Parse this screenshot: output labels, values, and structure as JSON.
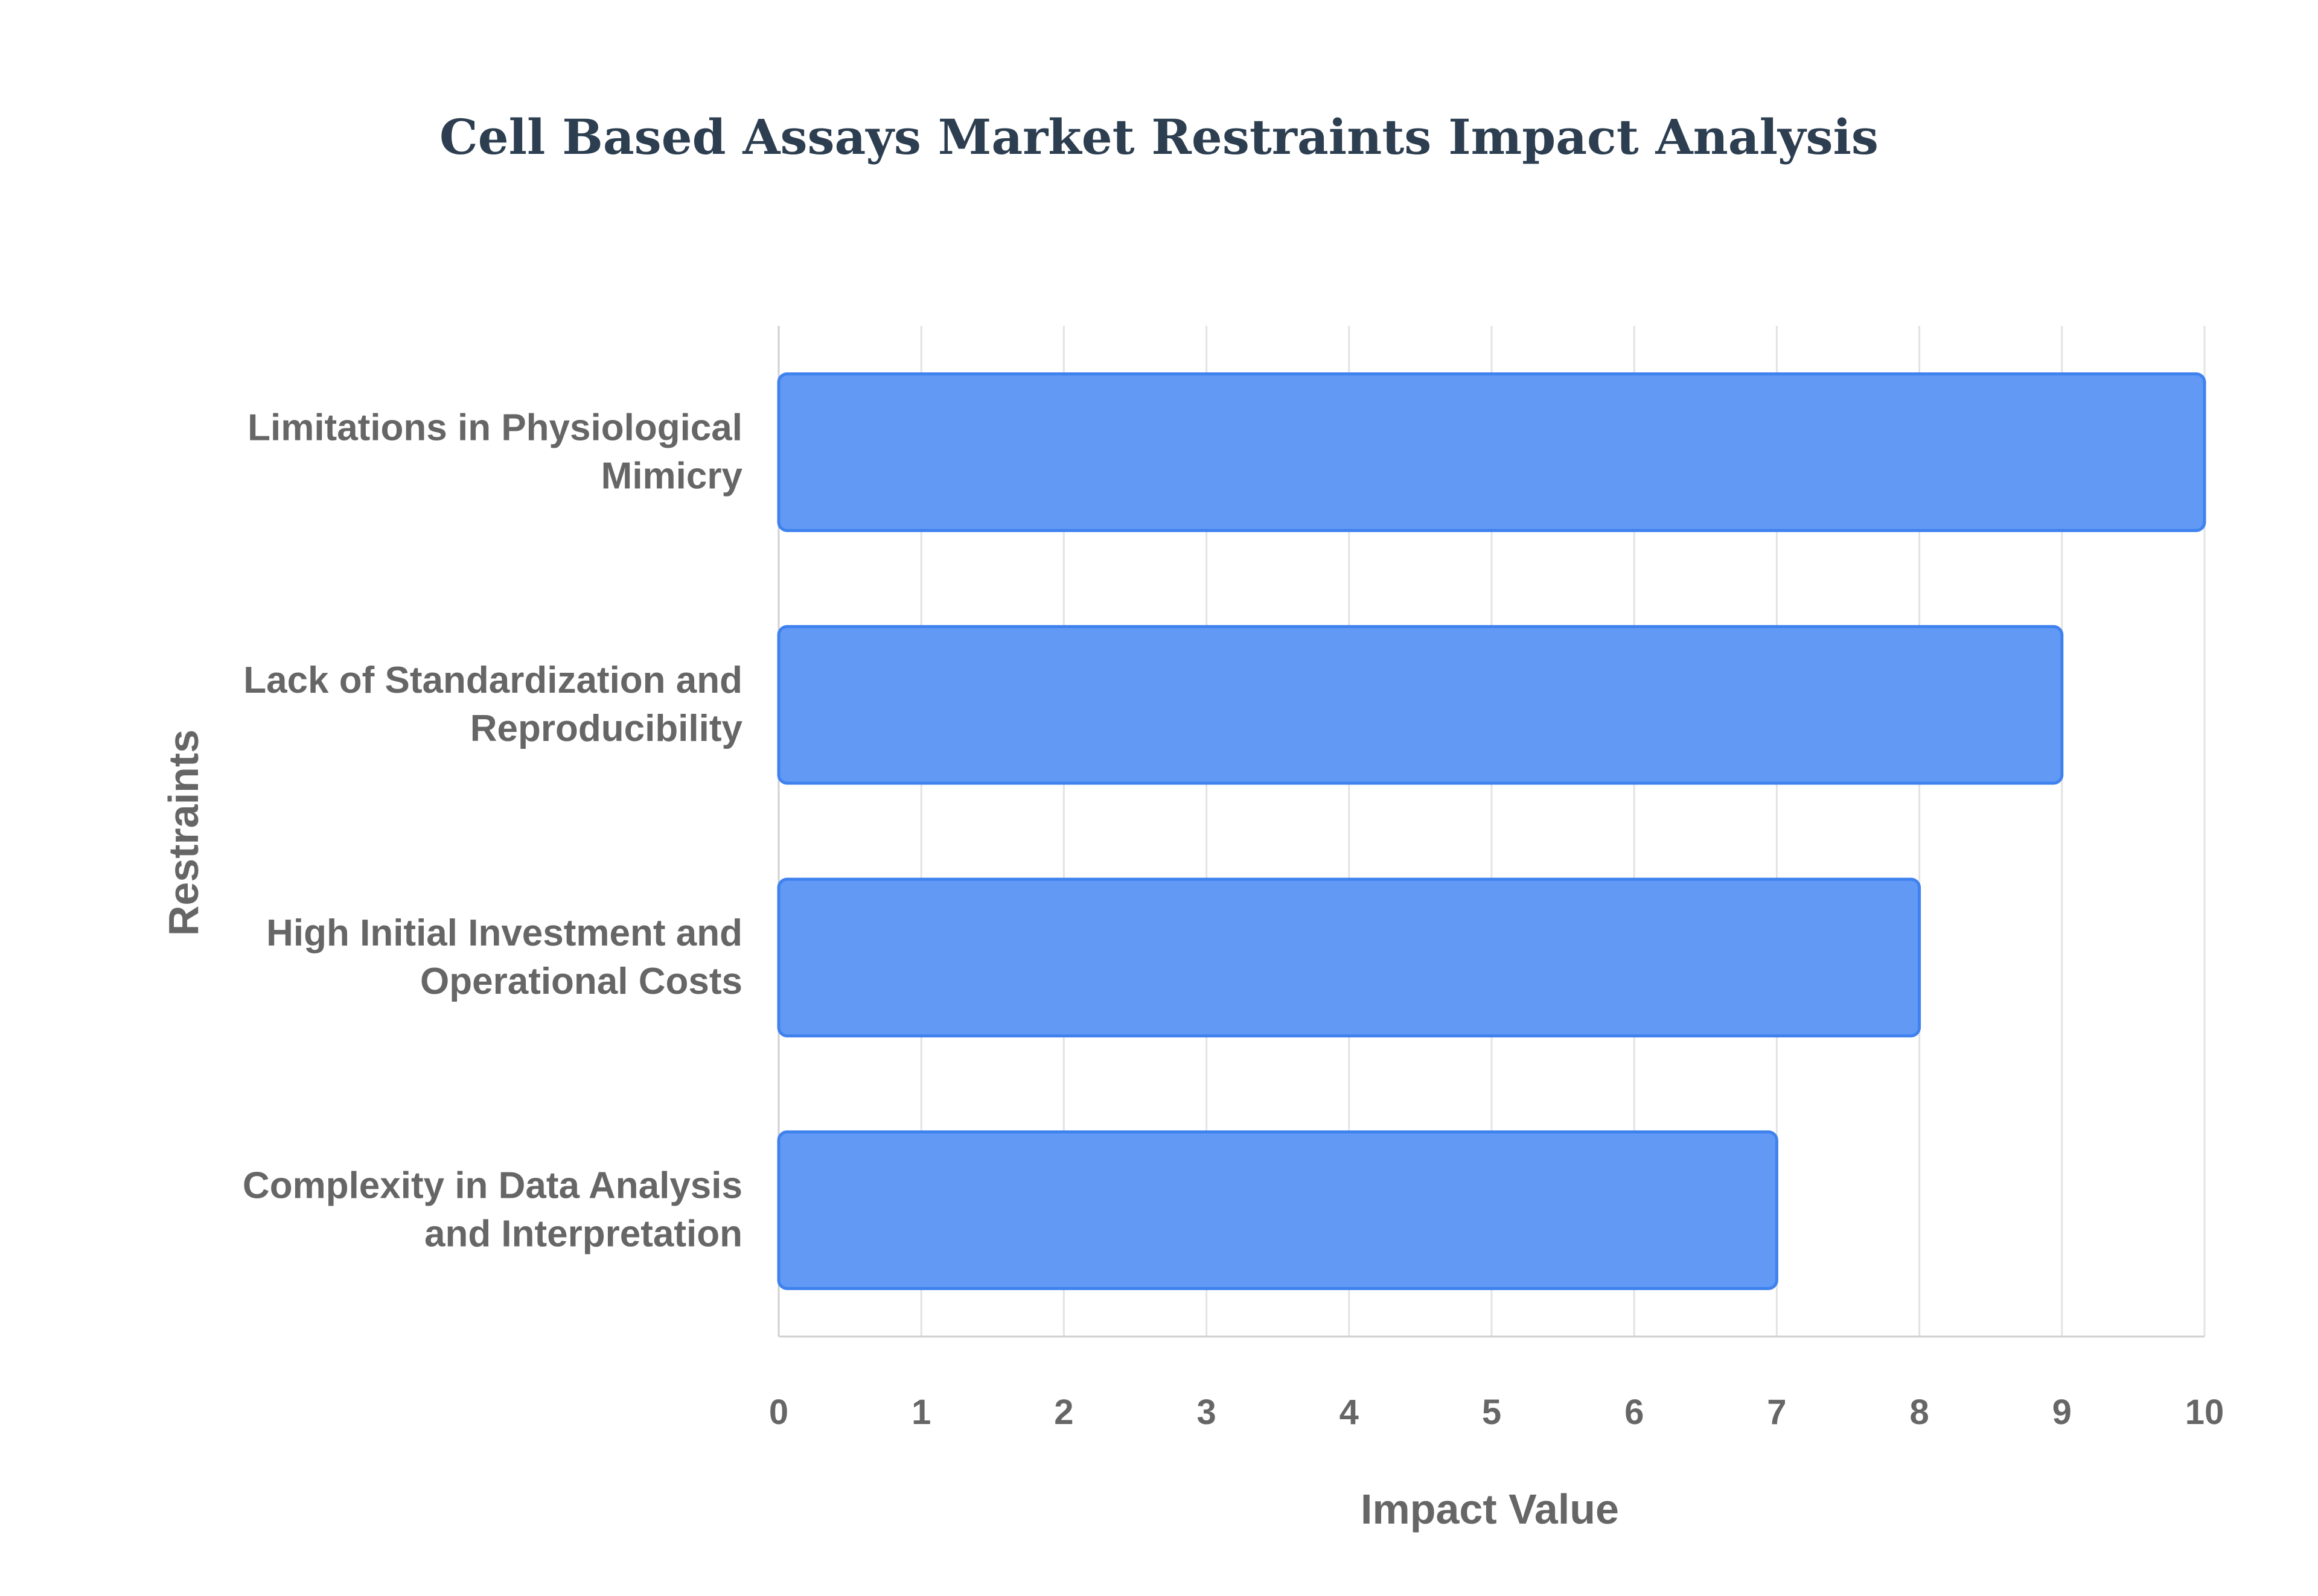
{
  "chart_data": {
    "type": "bar",
    "orientation": "horizontal",
    "title": "Cell Based Assays Market Restraints Impact Analysis",
    "xlabel": "Impact Value",
    "ylabel": "Restraints",
    "categories": [
      [
        "Limitations in Physiological",
        "Mimicry"
      ],
      [
        "Lack of Standardization and",
        "Reproducibility"
      ],
      [
        "High Initial Investment and",
        "Operational Costs"
      ],
      [
        "Complexity in Data Analysis",
        "and Interpretation"
      ]
    ],
    "values": [
      10,
      9,
      8,
      7
    ],
    "xlim": [
      0,
      10
    ],
    "xticks": [
      "0",
      "1",
      "2",
      "3",
      "4",
      "5",
      "6",
      "7",
      "8",
      "9",
      "10"
    ],
    "grid": true,
    "legend": "none",
    "colors": {
      "bar_fill": "#6199f5",
      "bar_stroke": "#3f82ee",
      "title": "#2c3e50",
      "text": "#666666",
      "grid": "#e3e3e3"
    }
  }
}
